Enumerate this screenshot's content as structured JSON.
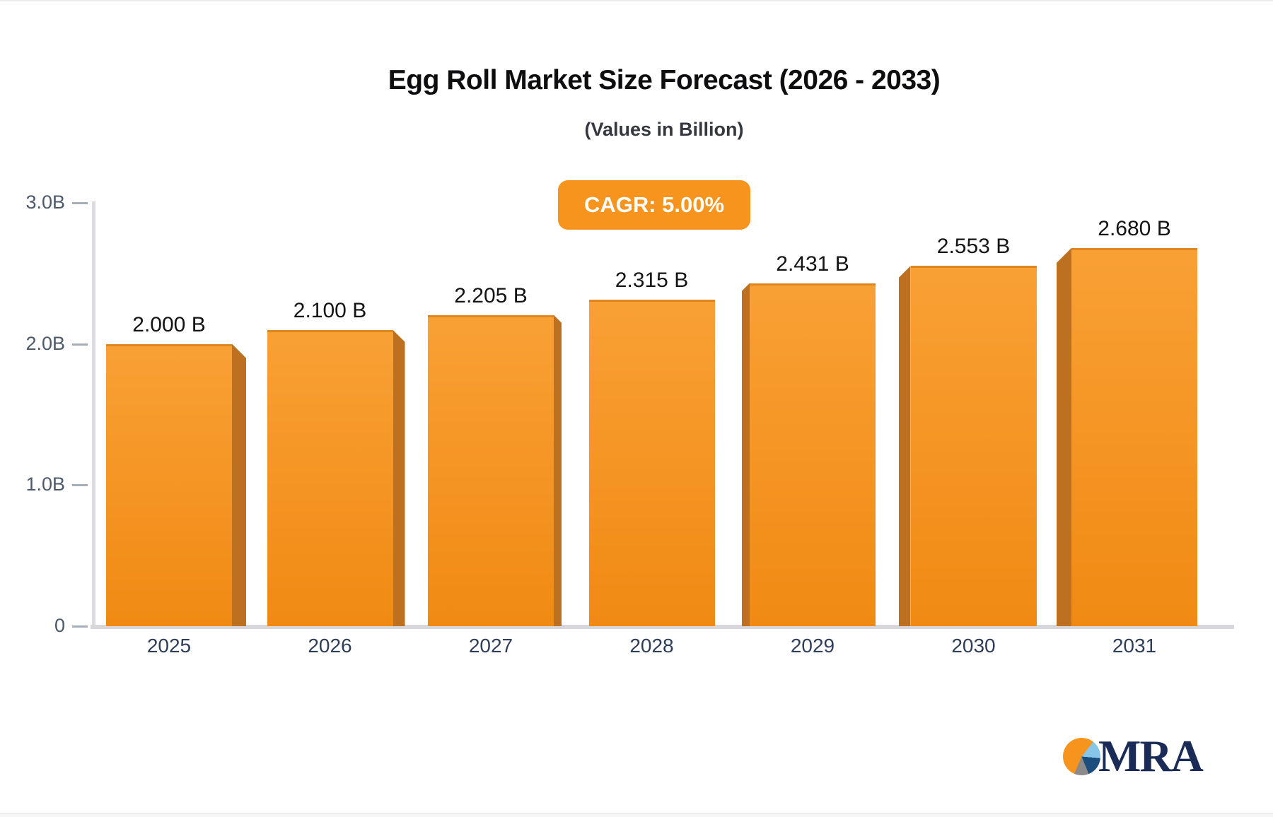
{
  "header": {
    "title": "Egg Roll Market Size Forecast (2026 - 2033)",
    "subtitle": "(Values in Billion)"
  },
  "badge": {
    "label": "CAGR: 5.00%",
    "bg_color": "#f7941e",
    "text_color": "#ffffff"
  },
  "chart_data": {
    "type": "bar",
    "title": "Egg Roll Market Size Forecast (2026 - 2033)",
    "subtitle": "(Values in Billion)",
    "cagr_label": "CAGR: 5.00%",
    "categories": [
      "2025",
      "2026",
      "2027",
      "2028",
      "2029",
      "2030",
      "2031"
    ],
    "values": [
      2.0,
      2.1,
      2.205,
      2.315,
      2.431,
      2.553,
      2.68
    ],
    "value_labels": [
      "2.000 B",
      "2.100 B",
      "2.205 B",
      "2.315 B",
      "2.431 B",
      "2.553 B",
      "2.680 B"
    ],
    "y_ticks": [
      "0",
      "1.0B",
      "2.0B",
      "3.0B"
    ],
    "y_tick_values": [
      0,
      1.0,
      2.0,
      3.0
    ],
    "ylim": [
      0,
      3.0
    ],
    "xlabel": "",
    "ylabel": "",
    "grid": false,
    "legend": false,
    "bar_color_top": "#f9a035",
    "bar_color_bottom": "#f08a13",
    "bar_side_color": "#bd701f",
    "bar_top_edge_color": "#e0861f"
  },
  "logo": {
    "text": "MRA",
    "text_color": "#1b2b57",
    "pie_orange": "#f7941e",
    "pie_sky_blue": "#87c6e9",
    "pie_navy": "#1c4e7d",
    "pie_gray": "#8d8a8b"
  }
}
